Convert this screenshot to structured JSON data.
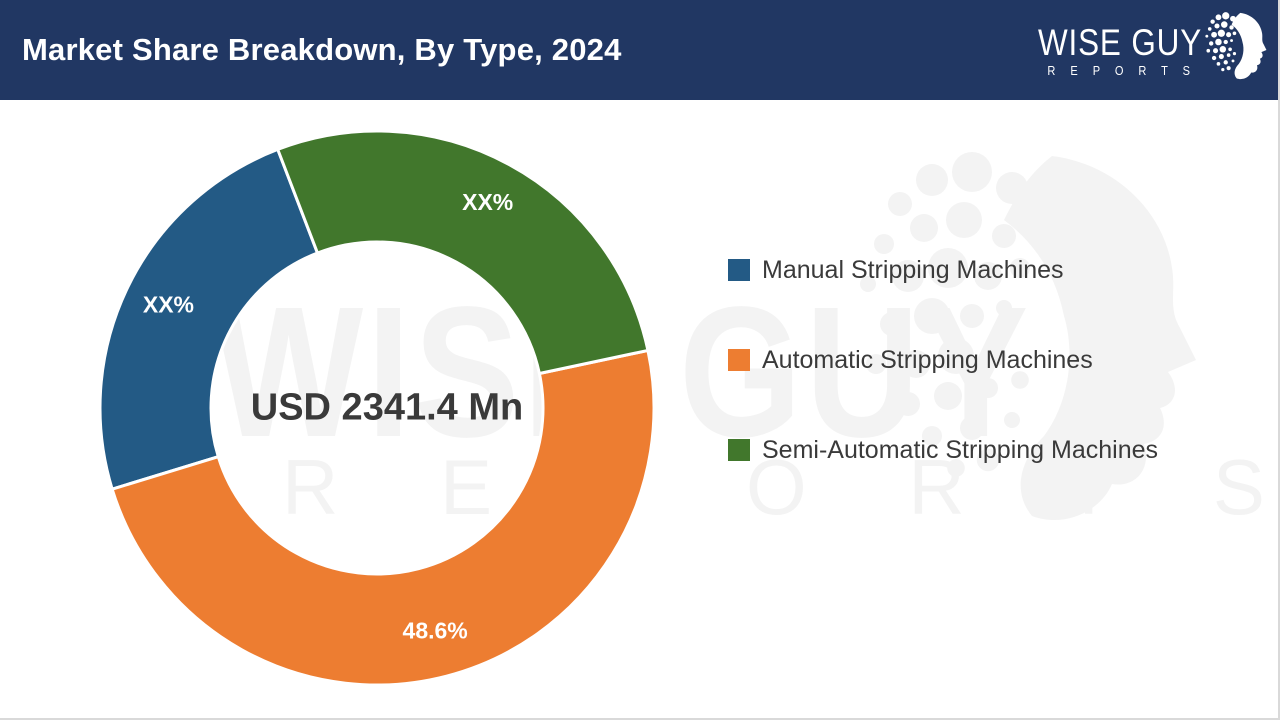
{
  "header": {
    "title": "Market Share Breakdown, By Type, 2024",
    "logo": {
      "line1": "WISE GUY",
      "line2": "R E P O R T S"
    }
  },
  "watermark": {
    "line1": "WISE GUY",
    "line2": "R E P O R T S"
  },
  "chart_data": {
    "type": "pie",
    "subtype": "donut",
    "title": "Market Share Breakdown, By Type, 2024",
    "center_label": "USD 2341.4 Mn",
    "start_angle_deg": 111,
    "direction": "counterclockwise",
    "inner_radius_ratio": 0.6,
    "legend_position": "right",
    "slices": [
      {
        "name": "Manual Stripping Machines",
        "color": "#235a85",
        "value_pct": 23.9,
        "label": "XX%"
      },
      {
        "name": "Automatic Stripping Machines",
        "color": "#ed7d31",
        "value_pct": 48.6,
        "label": "48.6%"
      },
      {
        "name": "Semi-Automatic Stripping Machines",
        "color": "#41772c",
        "value_pct": 27.5,
        "label": "XX%"
      }
    ]
  },
  "colors": {
    "header_bg": "#213763",
    "slice_label": "#ffffff",
    "center_text": "#3a3a3a",
    "legend_text": "#3a3a3a",
    "watermark": "#f3f3f3"
  }
}
